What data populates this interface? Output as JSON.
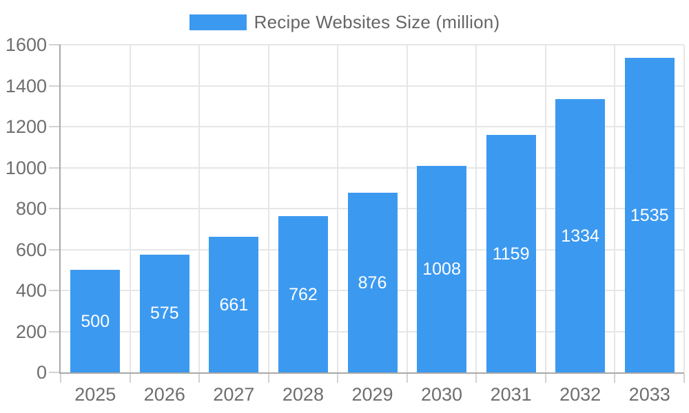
{
  "legend": {
    "label": "Recipe Websites Size (million)",
    "position": "top-center"
  },
  "chart_data": {
    "type": "bar",
    "title": "Recipe Websites Size (million)",
    "categories": [
      "2025",
      "2026",
      "2027",
      "2028",
      "2029",
      "2030",
      "2031",
      "2032",
      "2033"
    ],
    "values": [
      500,
      575,
      661,
      762,
      876,
      1008,
      1159,
      1334,
      1535
    ],
    "xlabel": "",
    "ylabel": "",
    "ylim": [
      0,
      1600
    ],
    "ytick_step": 200,
    "yticks": [
      0,
      200,
      400,
      600,
      800,
      1000,
      1200,
      1400,
      1600
    ],
    "grid": true,
    "value_labels": "inside-center",
    "legend_position": "top-center",
    "bar_color": "#3C99F0",
    "value_label_color": "#FFFFFF"
  },
  "colors": {
    "bar": "#3C99F0",
    "grid": "#E6E6E6",
    "axis": "#A8A8A8",
    "tick": "#D2D2D2",
    "axis_label": "#6E6E6E",
    "legend_label": "#666666",
    "value_label": "#FFFFFF",
    "background": "#FFFFFF"
  }
}
